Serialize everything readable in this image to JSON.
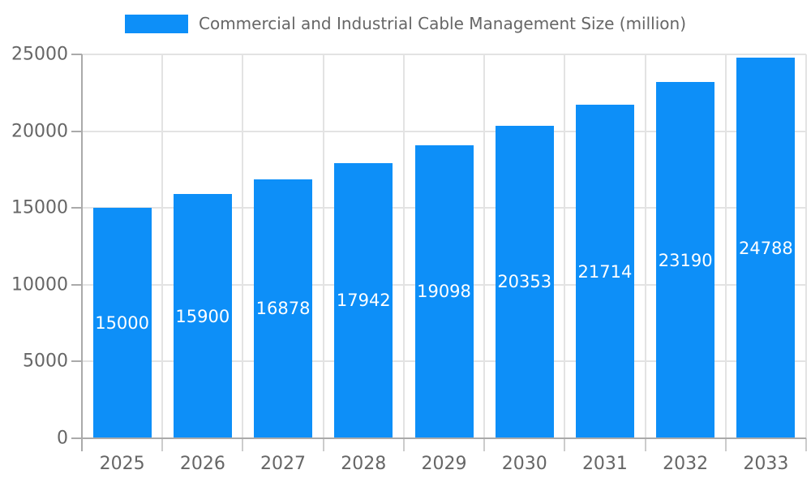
{
  "chart_data": {
    "type": "bar",
    "title": "Commercial and Industrial Cable Management Size (million)",
    "legend": {
      "label": "Commercial and Industrial Cable Management Size (million)",
      "position": "top-center"
    },
    "categories": [
      "2025",
      "2026",
      "2027",
      "2028",
      "2029",
      "2030",
      "2031",
      "2032",
      "2033"
    ],
    "values": [
      15000,
      15900,
      16878,
      17942,
      19098,
      20353,
      21714,
      23190,
      24788
    ],
    "xlabel": "",
    "ylabel": "",
    "ylim": [
      0,
      25000
    ],
    "yticks": [
      0,
      5000,
      10000,
      15000,
      20000,
      25000
    ],
    "grid": {
      "horizontal": true,
      "vertical": true
    },
    "value_label_position": "inside-center",
    "colors": {
      "bar": "#0D8FF8",
      "value_label": "#FFFFFF",
      "axis_text": "#666666",
      "grid_line": "#E3E3E3",
      "axis_line": "#AAAAAA",
      "x_tick": "#CCCCCC",
      "y_tick": "#AAAAAA"
    }
  }
}
